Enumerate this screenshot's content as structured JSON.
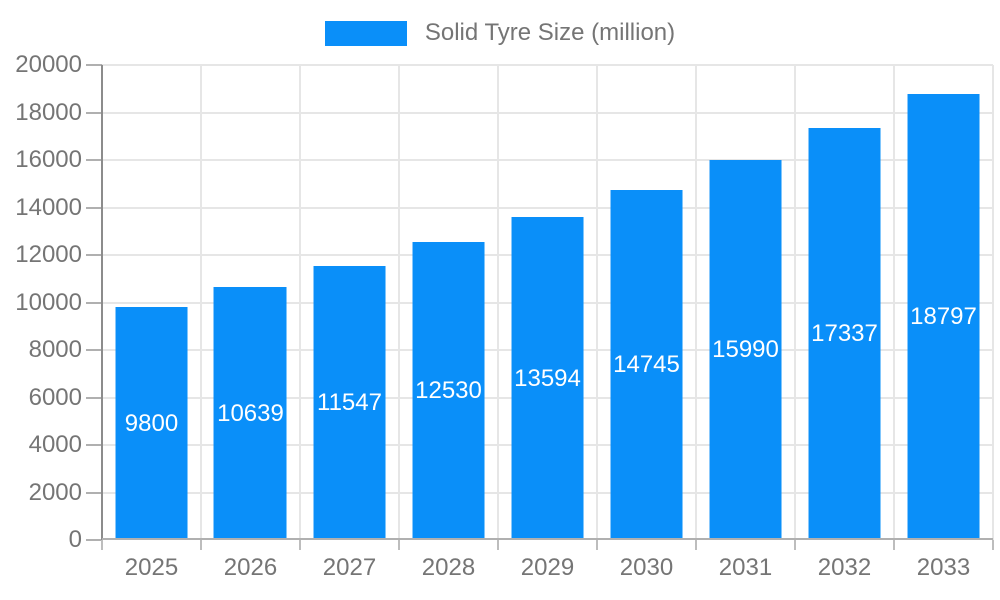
{
  "chart_data": {
    "type": "bar",
    "title": "",
    "legend": {
      "label": "Solid Tyre Size (million)",
      "position": "top-center"
    },
    "categories": [
      "2025",
      "2026",
      "2027",
      "2028",
      "2029",
      "2030",
      "2031",
      "2032",
      "2033"
    ],
    "series": [
      {
        "name": "Solid Tyre Size (million)",
        "values": [
          9800,
          10639,
          11547,
          12530,
          13594,
          14745,
          15990,
          17337,
          18797
        ]
      }
    ],
    "value_labels": "inside-center",
    "xlabel": "",
    "ylabel": "",
    "ylim": [
      0,
      20000
    ],
    "ytick_step": 2000,
    "yticks": [
      0,
      2000,
      4000,
      6000,
      8000,
      10000,
      12000,
      14000,
      16000,
      18000,
      20000
    ],
    "grid": true,
    "colors": {
      "bar": "#0a8ff9",
      "axis_text": "#757575",
      "value_label": "#ffffff",
      "gridline": "#e6e6e6",
      "y_axis_line": "#8c8c8c",
      "x_axis_line": "#b0b0b0"
    }
  }
}
